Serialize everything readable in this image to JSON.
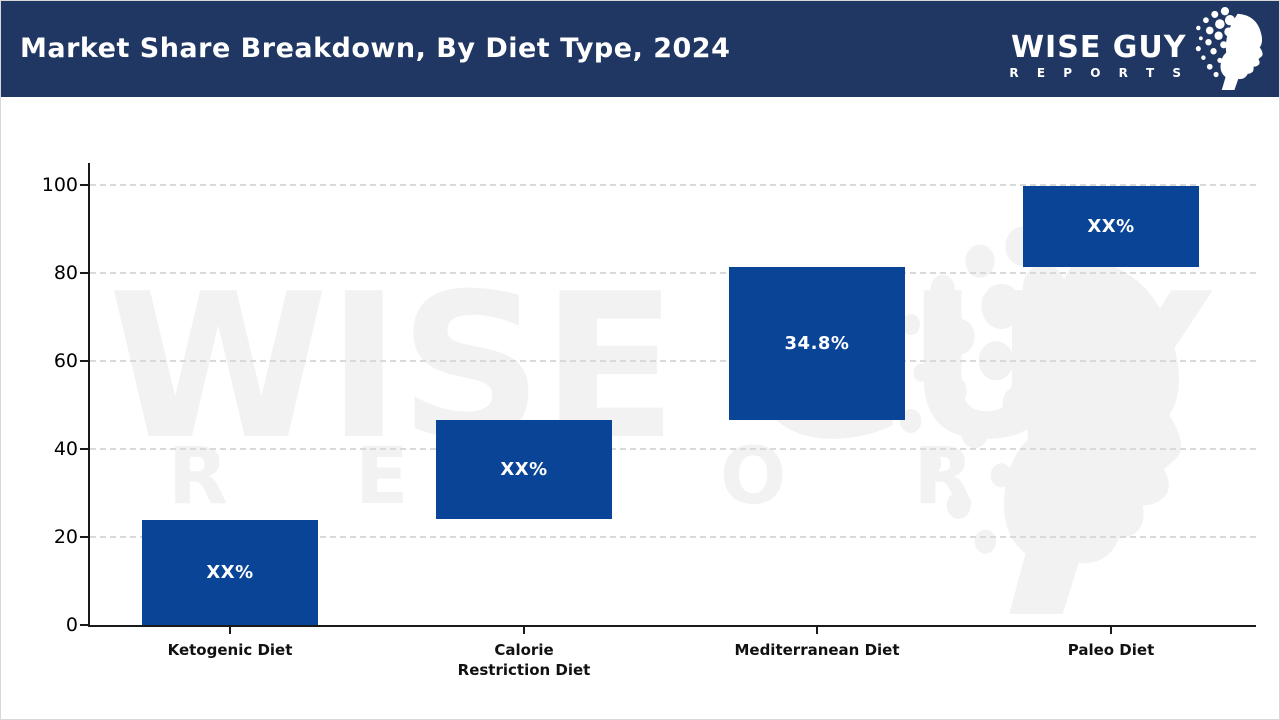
{
  "header": {
    "title": "Market Share Breakdown, By Diet Type, 2024",
    "bg_color": "#203763",
    "logo": {
      "line1": "WISE GUY",
      "line2": "R E P O R T S"
    }
  },
  "watermark": {
    "line1": "WISE GUY",
    "line2": "R E P O R T S"
  },
  "chart_data": {
    "type": "bar",
    "subtype": "floating-segment-waterfall",
    "title": "Market Share Breakdown, By Diet Type, 2024",
    "xlabel": "",
    "ylabel": "",
    "categories": [
      "Ketogenic Diet",
      "Calorie\nRestriction Diet",
      "Mediterranean Diet",
      "Paleo Diet"
    ],
    "bars": [
      {
        "category": "Ketogenic Diet",
        "start": 0,
        "end": 23.9,
        "label": "XX%"
      },
      {
        "category": "Calorie Restriction Diet",
        "start": 24.1,
        "end": 46.6,
        "label": "XX%"
      },
      {
        "category": "Mediterranean Diet",
        "start": 46.6,
        "end": 81.4,
        "label": "34.8%"
      },
      {
        "category": "Paleo Diet",
        "start": 81.4,
        "end": 99.8,
        "label": "XX%"
      }
    ],
    "bar_color": "#0a4496",
    "y_ticks": [
      0,
      20,
      40,
      60,
      80,
      100
    ],
    "ylim": [
      0,
      105
    ],
    "grid": "horizontal-dashed",
    "gridline_color": "#d9d9d9",
    "legend": "none"
  }
}
